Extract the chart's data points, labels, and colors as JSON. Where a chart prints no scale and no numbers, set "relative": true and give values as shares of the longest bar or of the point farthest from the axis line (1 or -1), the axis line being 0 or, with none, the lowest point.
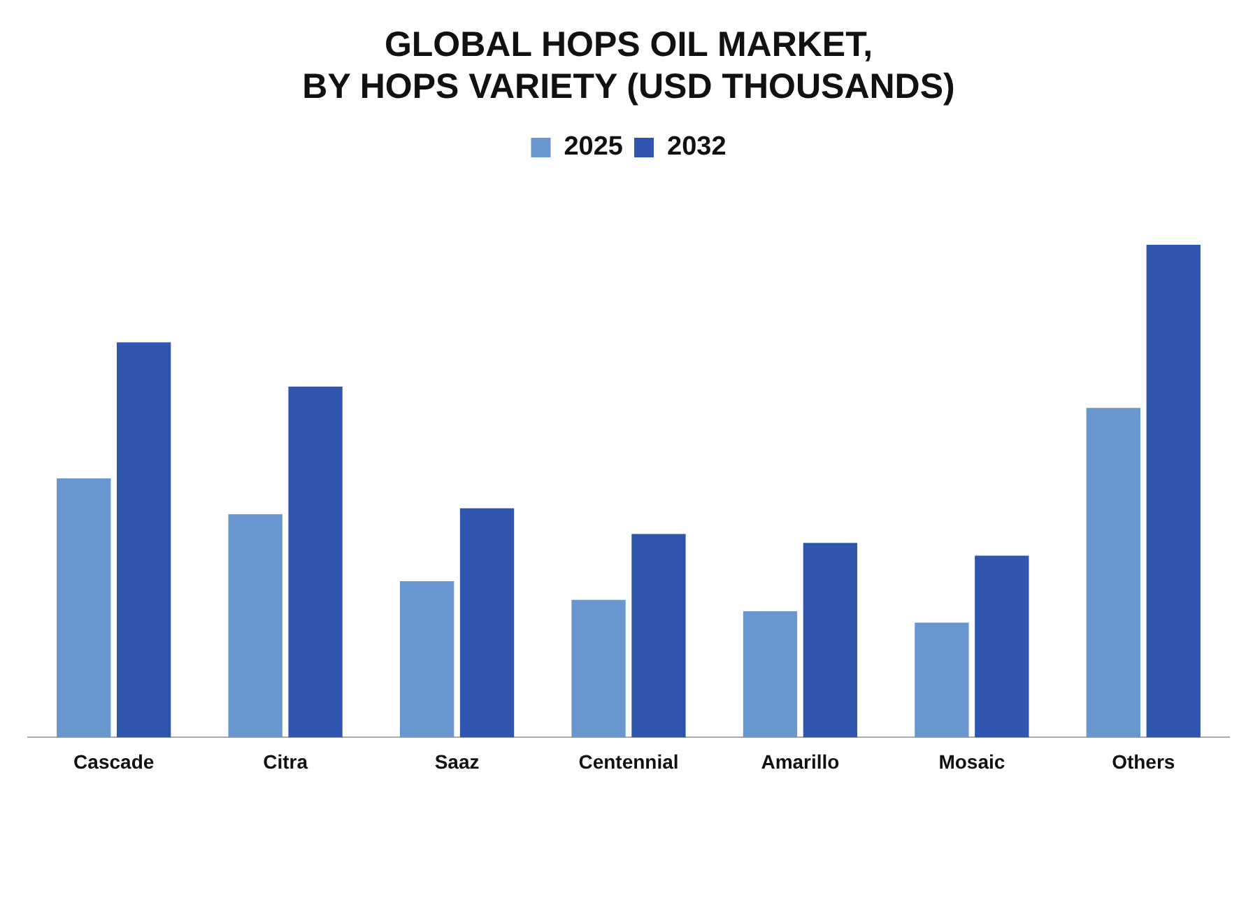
{
  "chart_data": {
    "type": "bar",
    "title": "GLOBAL HOPS OIL MARKET,\nBY HOPS VARIETY (USD THOUSANDS)",
    "relative": true,
    "legend": "top",
    "grid": false,
    "categories": [
      "Cascade",
      "Citra",
      "Saaz",
      "Centennial",
      "Amarillo",
      "Mosaic",
      "Others"
    ],
    "series": [
      {
        "name": "2025",
        "color": "#6a96cf",
        "values": [
          0.526,
          0.453,
          0.317,
          0.279,
          0.256,
          0.233,
          0.669
        ]
      },
      {
        "name": "2032",
        "color": "#2f55ae",
        "values": [
          0.802,
          0.712,
          0.465,
          0.413,
          0.395,
          0.369,
          1
        ]
      }
    ]
  }
}
